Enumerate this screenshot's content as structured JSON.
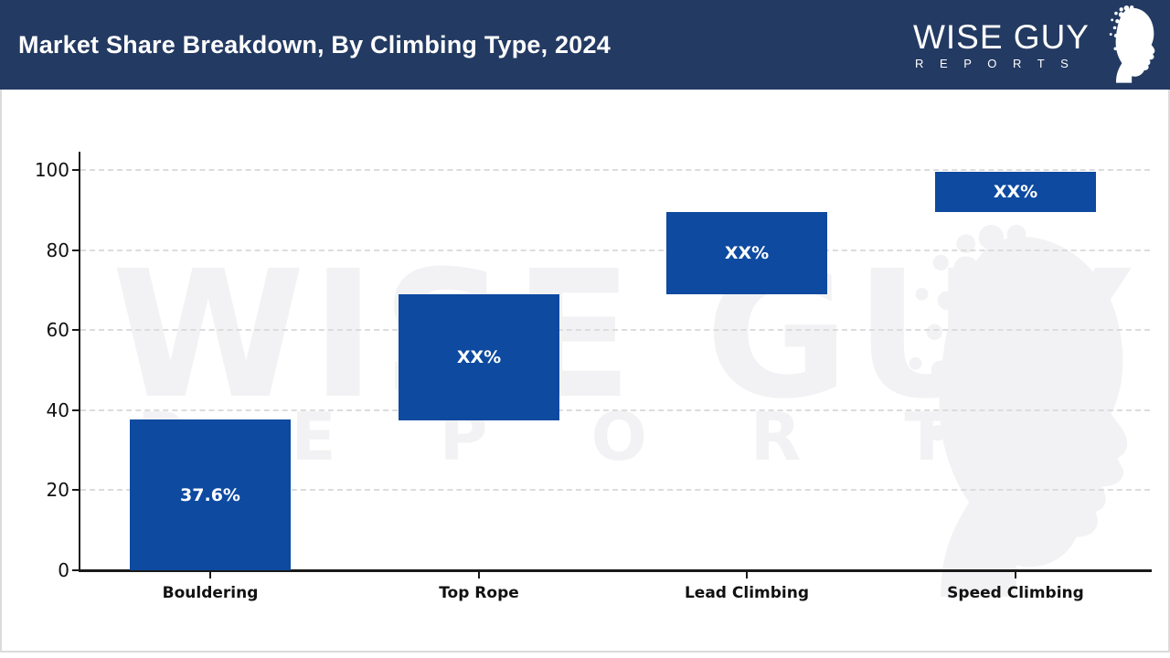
{
  "header": {
    "title": "Market Share Breakdown, By Climbing Type, 2024",
    "brand_line1": "WISE GUY",
    "brand_line2": "R E P O R T S",
    "bg_color": "#233A62"
  },
  "watermark": {
    "line1": "WISE GUY",
    "line2": "R E P O R T S"
  },
  "chart_data": {
    "type": "bar",
    "subtype": "waterfall",
    "title": "Market Share Breakdown, By Climbing Type, 2024",
    "categories": [
      "Bouldering",
      "Top Rope",
      "Lead Climbing",
      "Speed Climbing"
    ],
    "segments": [
      {
        "category": "Bouldering",
        "start": 0,
        "end": 37.6,
        "label": "37.6%"
      },
      {
        "category": "Top Rope",
        "start": 37.6,
        "end": 69,
        "label": "XX%"
      },
      {
        "category": "Lead Climbing",
        "start": 69,
        "end": 89.5,
        "label": "XX%"
      },
      {
        "category": "Speed Climbing",
        "start": 89.5,
        "end": 99.5,
        "label": "XX%"
      }
    ],
    "yticks": [
      0,
      20,
      40,
      60,
      80,
      100
    ],
    "ylim": [
      0,
      100
    ],
    "xlabel": "",
    "ylabel": "",
    "grid": "horizontal-dashed",
    "legend": "none",
    "bar_color": "#0D4AA0",
    "label_color": "#FFFFFF"
  }
}
